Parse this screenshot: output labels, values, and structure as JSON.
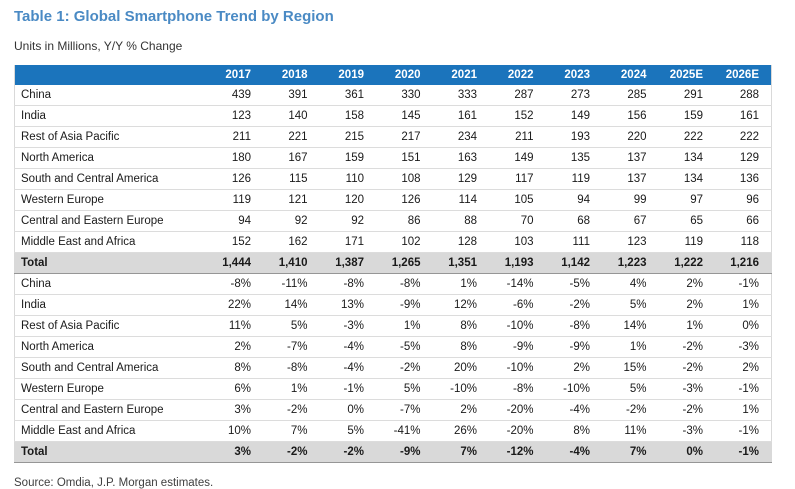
{
  "title": "Table 1: Global Smartphone Trend by Region",
  "subtitle": "Units in Millions, Y/Y % Change",
  "source": "Source: Omdia, J.P. Morgan estimates.",
  "colors": {
    "title_blue": "#4a8ac4",
    "header_bg": "#1b74bc",
    "header_text": "#ffffff",
    "total_row_bg": "#d9d9d9",
    "row_border": "#dcdcdc",
    "total_border": "#969696"
  },
  "chart_data": {
    "type": "table",
    "title": "Global Smartphone Trend by Region",
    "units_note": "Units in Millions",
    "pct_note": "Y/Y % Change",
    "columns": [
      "2017",
      "2018",
      "2019",
      "2020",
      "2021",
      "2022",
      "2023",
      "2024",
      "2025E",
      "2026E"
    ],
    "sections": [
      {
        "name": "units-in-millions",
        "rows": [
          {
            "label": "China",
            "values": [
              "439",
              "391",
              "361",
              "330",
              "333",
              "287",
              "273",
              "285",
              "291",
              "288"
            ],
            "total": false
          },
          {
            "label": "India",
            "values": [
              "123",
              "140",
              "158",
              "145",
              "161",
              "152",
              "149",
              "156",
              "159",
              "161"
            ],
            "total": false
          },
          {
            "label": "Rest of Asia Pacific",
            "values": [
              "211",
              "221",
              "215",
              "217",
              "234",
              "211",
              "193",
              "220",
              "222",
              "222"
            ],
            "total": false
          },
          {
            "label": "North America",
            "values": [
              "180",
              "167",
              "159",
              "151",
              "163",
              "149",
              "135",
              "137",
              "134",
              "129"
            ],
            "total": false
          },
          {
            "label": "South and Central America",
            "values": [
              "126",
              "115",
              "110",
              "108",
              "129",
              "117",
              "119",
              "137",
              "134",
              "136"
            ],
            "total": false
          },
          {
            "label": "Western Europe",
            "values": [
              "119",
              "121",
              "120",
              "126",
              "114",
              "105",
              "94",
              "99",
              "97",
              "96"
            ],
            "total": false
          },
          {
            "label": "Central and Eastern Europe",
            "values": [
              "94",
              "92",
              "92",
              "86",
              "88",
              "70",
              "68",
              "67",
              "65",
              "66"
            ],
            "total": false
          },
          {
            "label": "Middle East and Africa",
            "values": [
              "152",
              "162",
              "171",
              "102",
              "128",
              "103",
              "111",
              "123",
              "119",
              "118"
            ],
            "total": false
          },
          {
            "label": "Total",
            "values": [
              "1,444",
              "1,410",
              "1,387",
              "1,265",
              "1,351",
              "1,193",
              "1,142",
              "1,223",
              "1,222",
              "1,216"
            ],
            "total": true
          }
        ]
      },
      {
        "name": "yoy-percent-change",
        "rows": [
          {
            "label": "China",
            "values": [
              "-8%",
              "-11%",
              "-8%",
              "-8%",
              "1%",
              "-14%",
              "-5%",
              "4%",
              "2%",
              "-1%"
            ],
            "total": false
          },
          {
            "label": "India",
            "values": [
              "22%",
              "14%",
              "13%",
              "-9%",
              "12%",
              "-6%",
              "-2%",
              "5%",
              "2%",
              "1%"
            ],
            "total": false
          },
          {
            "label": "Rest of Asia Pacific",
            "values": [
              "11%",
              "5%",
              "-3%",
              "1%",
              "8%",
              "-10%",
              "-8%",
              "14%",
              "1%",
              "0%"
            ],
            "total": false
          },
          {
            "label": "North America",
            "values": [
              "2%",
              "-7%",
              "-4%",
              "-5%",
              "8%",
              "-9%",
              "-9%",
              "1%",
              "-2%",
              "-3%"
            ],
            "total": false
          },
          {
            "label": "South and Central America",
            "values": [
              "8%",
              "-8%",
              "-4%",
              "-2%",
              "20%",
              "-10%",
              "2%",
              "15%",
              "-2%",
              "2%"
            ],
            "total": false
          },
          {
            "label": "Western Europe",
            "values": [
              "6%",
              "1%",
              "-1%",
              "5%",
              "-10%",
              "-8%",
              "-10%",
              "5%",
              "-3%",
              "-1%"
            ],
            "total": false
          },
          {
            "label": "Central and Eastern Europe",
            "values": [
              "3%",
              "-2%",
              "0%",
              "-7%",
              "2%",
              "-20%",
              "-4%",
              "-2%",
              "-2%",
              "1%"
            ],
            "total": false
          },
          {
            "label": "Middle East and Africa",
            "values": [
              "10%",
              "7%",
              "5%",
              "-41%",
              "26%",
              "-20%",
              "8%",
              "11%",
              "-3%",
              "-1%"
            ],
            "total": false
          },
          {
            "label": "Total",
            "values": [
              "3%",
              "-2%",
              "-2%",
              "-9%",
              "7%",
              "-12%",
              "-4%",
              "7%",
              "0%",
              "-1%"
            ],
            "total": true
          }
        ]
      }
    ]
  }
}
